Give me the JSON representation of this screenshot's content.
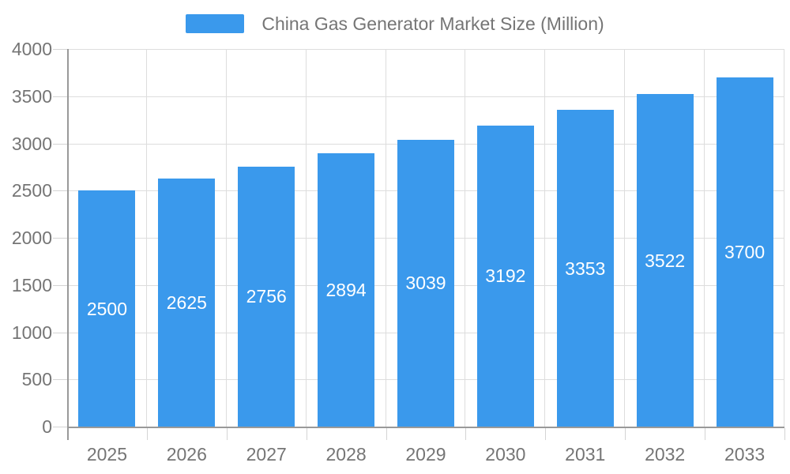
{
  "chart_data": {
    "type": "bar",
    "title": "China Gas Generator Market Size (Million)",
    "categories": [
      "2025",
      "2026",
      "2027",
      "2028",
      "2029",
      "2030",
      "2031",
      "2032",
      "2033"
    ],
    "values": [
      2500,
      2625,
      2756,
      2894,
      3039,
      3192,
      3353,
      3522,
      3700
    ],
    "xlabel": "",
    "ylabel": "",
    "ylim": [
      0,
      4000
    ],
    "ytick_interval": 500,
    "yticks": [
      0,
      500,
      1000,
      1500,
      2000,
      2500,
      3000,
      3500,
      4000
    ],
    "grid": true,
    "legend_position": "top",
    "bar_labels_inside": true,
    "colors": {
      "bar": "#3A99EC",
      "bar_label": "#ffffff",
      "axis_text": "#757575",
      "axis_line": "#999999",
      "gridline": "#dddddd",
      "tick": "#d4d4d4",
      "background": "#ffffff"
    }
  }
}
